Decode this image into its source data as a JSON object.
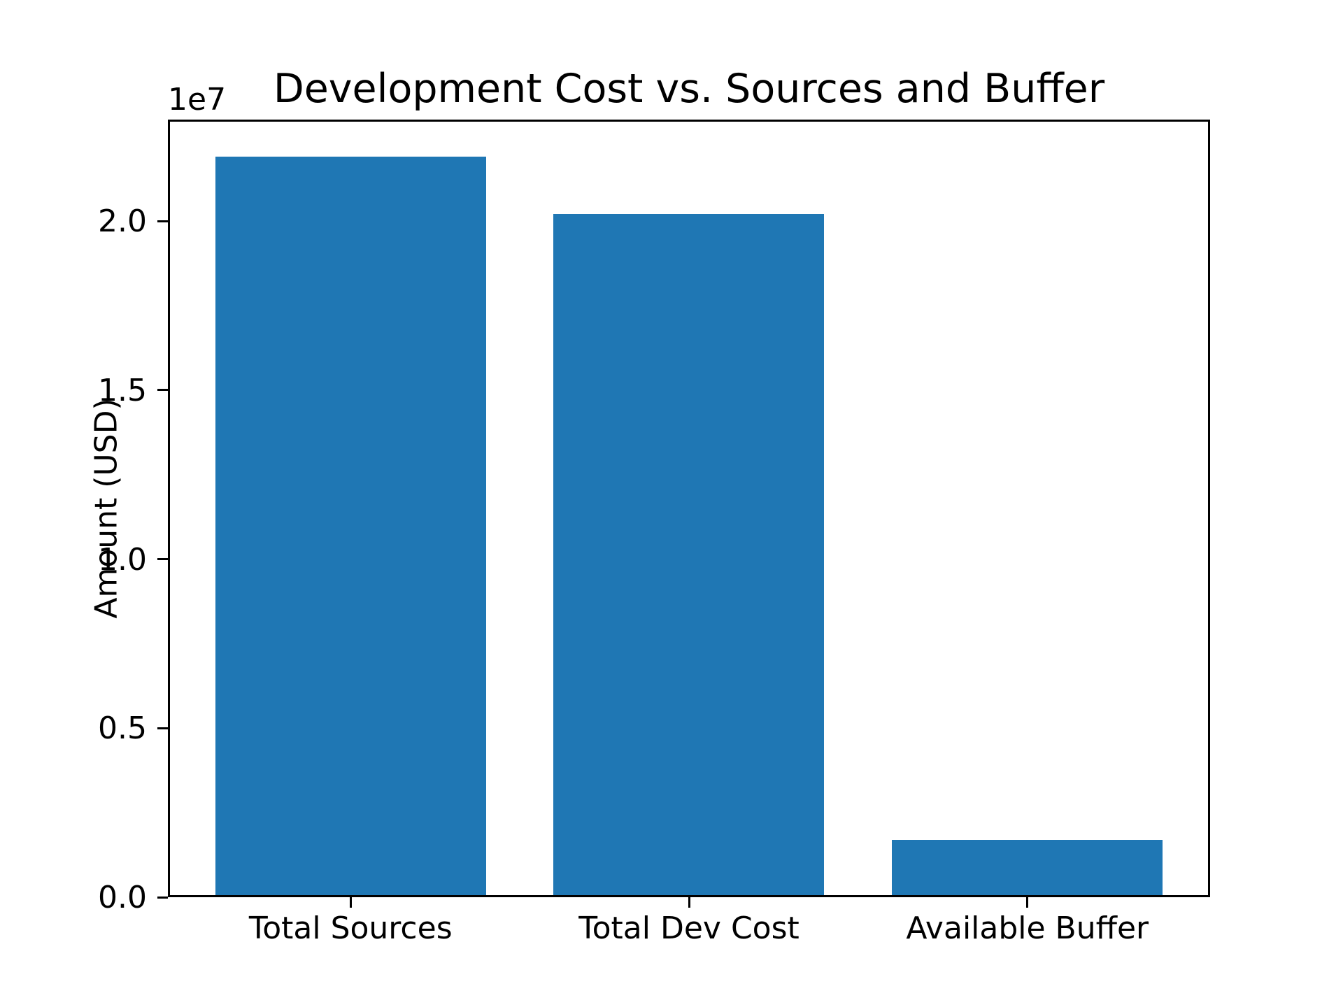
{
  "figure": {
    "background": "#ffffff",
    "text_color": "#000000",
    "spine_color": "#000000"
  },
  "chart_data": {
    "type": "bar",
    "title": "Development Cost vs. Sources and Buffer",
    "xlabel": "",
    "ylabel": "Amount (USD)",
    "offset_text": "1e7",
    "categories": [
      "Total Sources",
      "Total Dev Cost",
      "Available Buffer"
    ],
    "values": [
      21900000,
      20200000,
      1700000
    ],
    "yticks": {
      "values": [
        0,
        5000000,
        10000000,
        15000000,
        20000000
      ],
      "labels": [
        "0.0",
        "0.5",
        "1.0",
        "1.5",
        "2.0"
      ]
    },
    "ylim": [
      0,
      23000000
    ],
    "xlim": [
      -0.54,
      2.54
    ],
    "bar_width_fraction": 0.8,
    "bar_color": "#1f77b4",
    "grid": false,
    "legend": "none"
  }
}
